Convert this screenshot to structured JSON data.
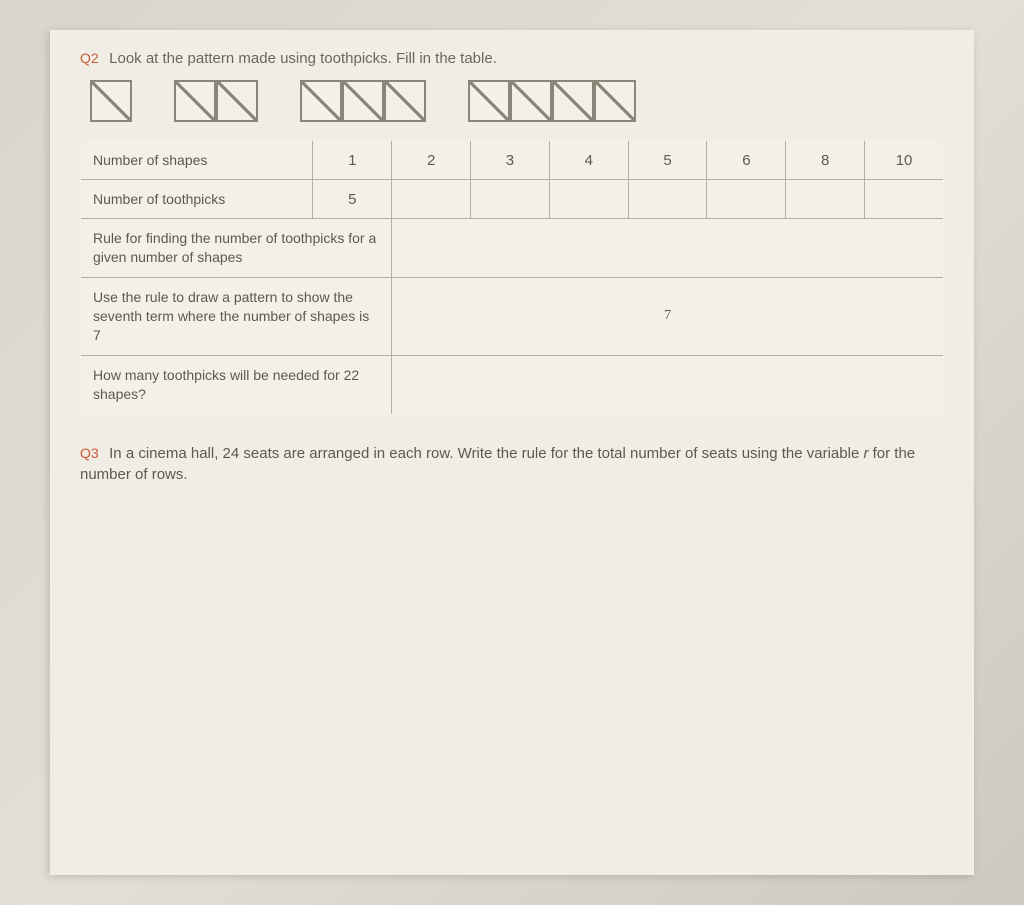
{
  "q2": {
    "label": "Q2",
    "text": "Look at the pattern made using toothpicks. Fill in the table.",
    "shape_groups": [
      1,
      2,
      3,
      4
    ],
    "table": {
      "row_shapes_label": "Number of shapes",
      "row_shapes_values": [
        "1",
        "2",
        "3",
        "4",
        "5",
        "6",
        "8",
        "10"
      ],
      "row_toothpicks_label": "Number of toothpicks",
      "row_toothpicks_values": [
        "5",
        "",
        "",
        "",
        "",
        "",
        "",
        ""
      ],
      "row_rule_label": "Rule for finding the number of toothpicks for a given number of shapes",
      "row_rule_value": "",
      "row_seventh_label": "Use the rule to draw a pattern to show the seventh term where the number of shapes is 7",
      "row_seventh_value": "7",
      "row_22_label": "How many toothpicks will be needed for 22 shapes?",
      "row_22_value": ""
    }
  },
  "q3": {
    "label": "Q3",
    "text_part1": "In a cinema hall, 24 seats are arranged in each row. Write the rule for the total number of seats using the variable ",
    "var": "r",
    "text_part2": " for the number of rows."
  },
  "colors": {
    "q_label": "#c95a3a",
    "text": "#5e5950",
    "border": "#b5afa2",
    "page_bg": "#f0ede4"
  }
}
